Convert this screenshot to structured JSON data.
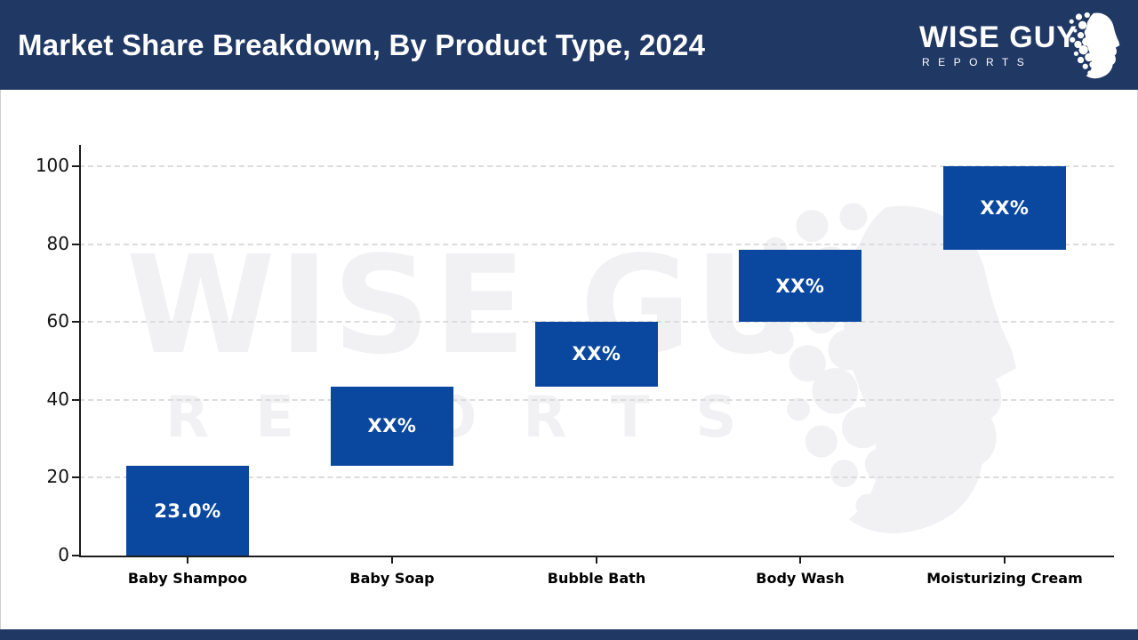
{
  "header": {
    "title": "Market Share Breakdown, By Product Type, 2024",
    "logo": {
      "name": "WISE GUY",
      "tagline": "REPORTS",
      "icon": "dotted-head-profile"
    }
  },
  "watermark": {
    "line1": "WISE GUY",
    "line2": "REPORTS",
    "icon": "dotted-head-profile"
  },
  "chart_data": {
    "type": "bar",
    "subtype": "waterfall",
    "title": "Market Share Breakdown, By Product Type, 2024",
    "categories": [
      "Baby Shampoo",
      "Baby Soap",
      "Bubble Bath",
      "Body Wash",
      "Moisturizing Cream"
    ],
    "bars": [
      {
        "category": "Baby Shampoo",
        "start": 0,
        "end": 23,
        "label": "23.0%"
      },
      {
        "category": "Baby Soap",
        "start": 23,
        "end": 43.5,
        "label": "XX%"
      },
      {
        "category": "Bubble Bath",
        "start": 43.5,
        "end": 60,
        "label": "XX%"
      },
      {
        "category": "Body Wash",
        "start": 60,
        "end": 78.5,
        "label": "XX%"
      },
      {
        "category": "Moisturizing Cream",
        "start": 78.5,
        "end": 100,
        "label": "XX%"
      }
    ],
    "y_ticks": [
      0,
      20,
      40,
      60,
      80,
      100
    ],
    "ylim": [
      0,
      105
    ],
    "xlabel": "",
    "ylabel": "",
    "legend": "none",
    "grid": "horizontal-dashed"
  },
  "colors": {
    "header_bg": "#203864",
    "footer_bg": "#203864",
    "bar_fill": "#0a48a0",
    "bar_label": "#ffffff",
    "axis": "#1c1c1c",
    "grid": "#dcdcdc",
    "watermark": "#f1f1f3",
    "background": "#ffffff"
  }
}
